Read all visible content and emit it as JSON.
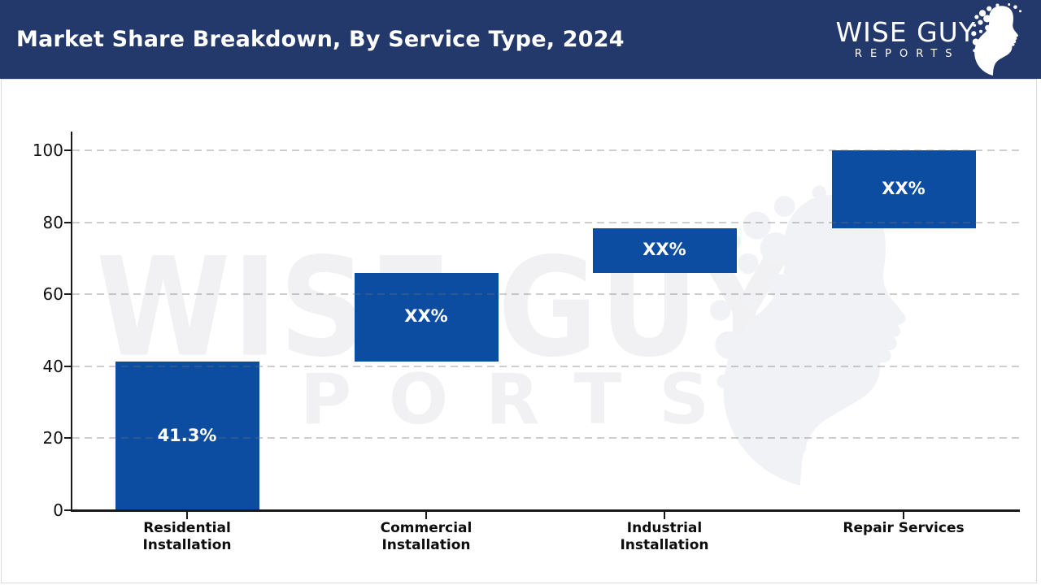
{
  "header": {
    "bg_color": "#24396B",
    "title": "Market Share Breakdown, By Service Type, 2024",
    "logo": {
      "wordmark": "WISE GUY",
      "subtitle": "REPORTS"
    }
  },
  "watermark": {
    "wordmark": "WISE GUY",
    "subtitle": "REPORTS"
  },
  "chart_data": {
    "type": "bar",
    "subtype": "waterfall",
    "title": "Market Share Breakdown, By Service Type, 2024",
    "categories": [
      "Residential\nInstallation",
      "Commercial\nInstallation",
      "Industrial\nInstallation",
      "Repair Services"
    ],
    "segments": [
      {
        "category": "Residential Installation",
        "start": 0,
        "end": 41.3,
        "label": "41.3%"
      },
      {
        "category": "Commercial Installation",
        "start": 41.3,
        "end": 66.0,
        "label": "XX%"
      },
      {
        "category": "Industrial Installation",
        "start": 66.0,
        "end": 78.3,
        "label": "XX%"
      },
      {
        "category": "Repair Services",
        "start": 78.3,
        "end": 100.0,
        "label": "XX%"
      }
    ],
    "ylim": [
      0,
      100
    ],
    "yticks": [
      0,
      20,
      40,
      60,
      80,
      100
    ],
    "grid": true,
    "grid_style": "dashed",
    "bar_color": "#0C4DA2",
    "value_label_color": "#FFFFFF",
    "axis_color": "#1A1A1A"
  }
}
